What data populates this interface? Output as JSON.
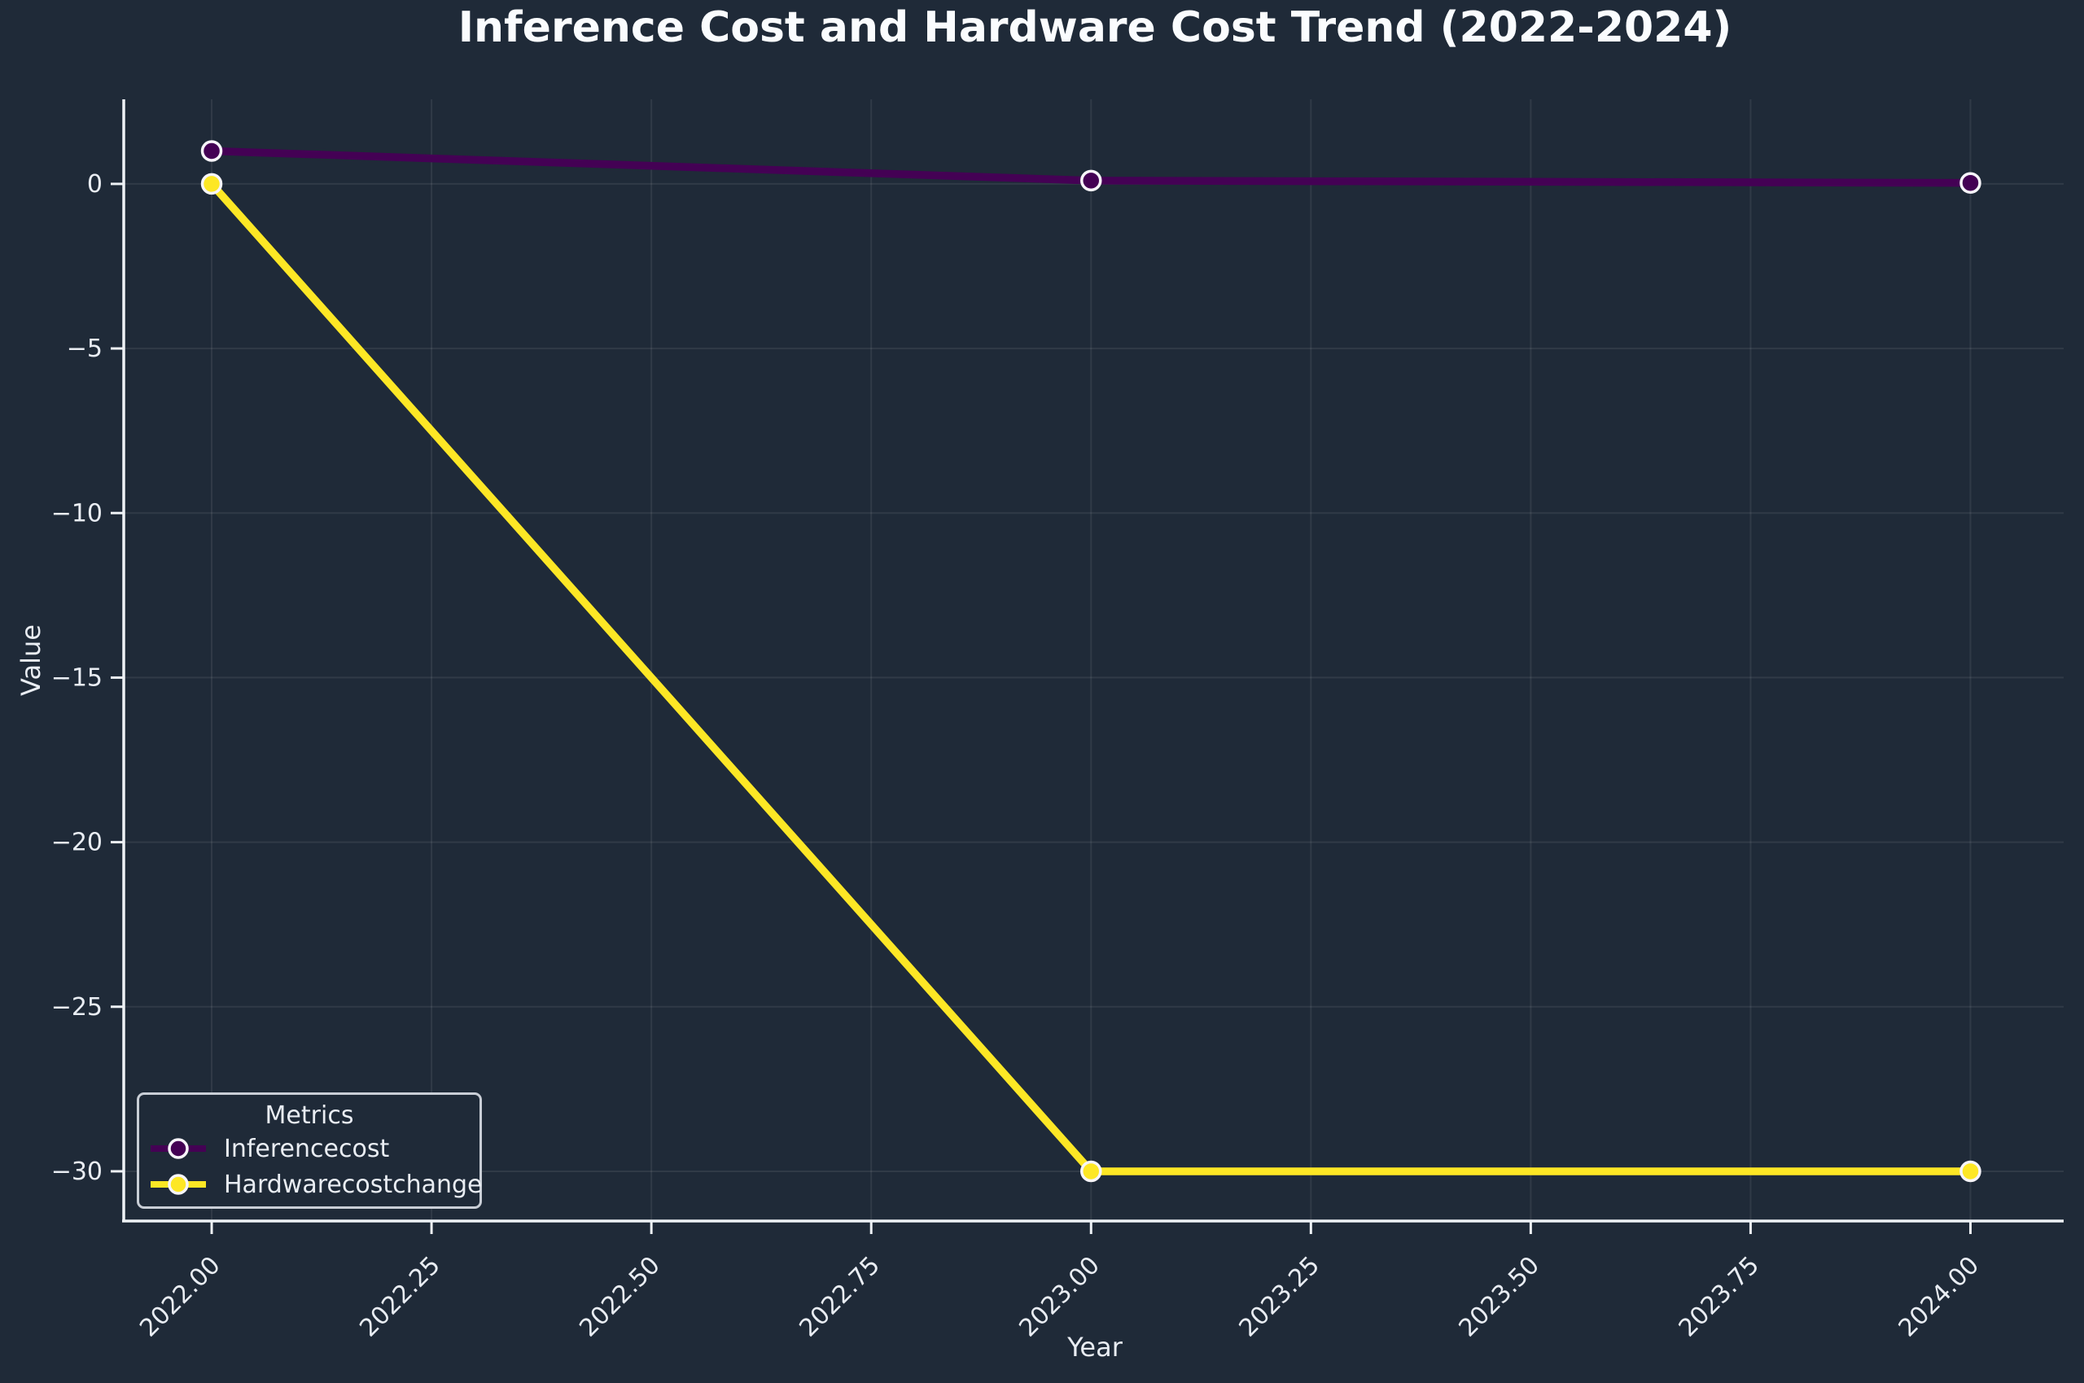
{
  "title": "Inference Cost and Hardware Cost Trend (2022-2024)",
  "x_axis_label": "Year",
  "y_axis_label": "Value",
  "legend": {
    "title": "Metrics",
    "entries": [
      {
        "label": "Inferencecost",
        "color": "#440154",
        "marker": "open-circle"
      },
      {
        "label": "Hardwarecostchange",
        "color": "#FDE725",
        "marker": "filled-circle"
      }
    ]
  },
  "colors": {
    "background": "#1f2a38",
    "text": "#e9edf3",
    "title_text": "#fafcfe",
    "spine": "#eef2f6",
    "grid": "#ffffff",
    "marker_edge": "#f7f5fa"
  },
  "chart_data": {
    "type": "line",
    "title": "Inference Cost and Hardware Cost Trend (2022-2024)",
    "xlabel": "Year",
    "ylabel": "Value",
    "x": [
      2022,
      2023,
      2024
    ],
    "series": [
      {
        "name": "Inferencecost",
        "values": [
          1.0,
          0.1,
          0.03
        ],
        "color": "#440154",
        "marker": "open-circle"
      },
      {
        "name": "Hardwarecostchange",
        "values": [
          0,
          -30,
          -30
        ],
        "color": "#FDE725",
        "marker": "filled-circle"
      }
    ],
    "xlim": [
      2021.9,
      2024.106
    ],
    "ylim": [
      -31.51,
      2.57
    ],
    "x_ticks": [
      2022,
      2022.25,
      2022.5,
      2022.75,
      2023,
      2023.25,
      2023.5,
      2023.75,
      2024
    ],
    "x_tick_labels": [
      "2022.00",
      "2022.25",
      "2022.50",
      "2022.75",
      "2023.00",
      "2023.25",
      "2023.50",
      "2023.75",
      "2024.00"
    ],
    "y_ticks": [
      0,
      -5,
      -10,
      -15,
      -20,
      -25,
      -30
    ],
    "y_tick_labels": [
      "0",
      "−5",
      "−10",
      "−15",
      "−20",
      "−25",
      "−30"
    ],
    "grid": true,
    "legend_position": "lower-left"
  }
}
